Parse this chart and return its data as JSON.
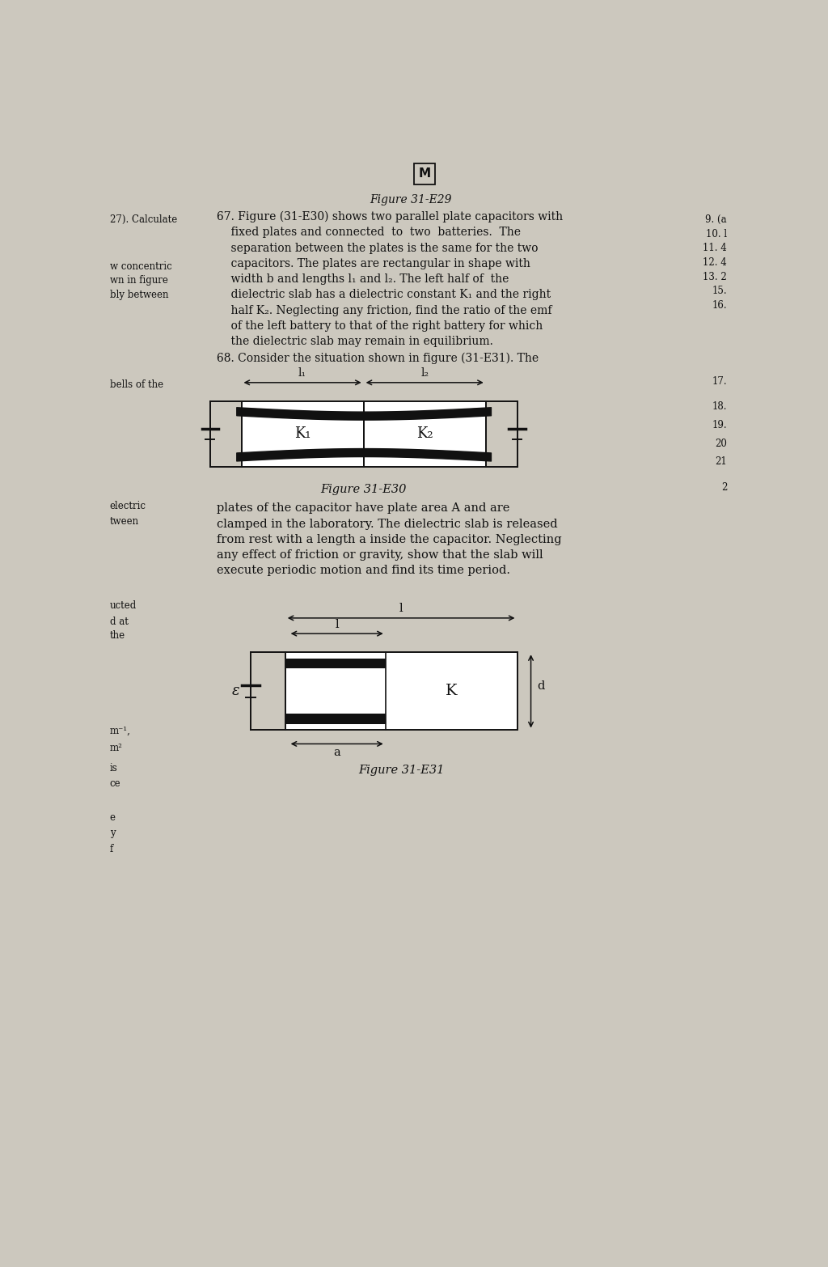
{
  "bg_color": "#ccc8be",
  "title_e29": "Figure 31-E29",
  "title_e30": "Figure 31-E30",
  "title_e31": "Figure 31-E31",
  "page_box_text": "M",
  "font_color": "#111111",
  "q67_lines": [
    "67. Figure (31-E30) shows two parallel plate capacitors with",
    "    fixed plates and connected  to  two  batteries.  The",
    "    separation between the plates is the same for the two",
    "    capacitors. The plates are rectangular in shape with",
    "    width b and lengths l₁ and l₂. The left half of  the",
    "    dielectric slab has a dielectric constant K₁ and the right",
    "    half K₂. Neglecting any friction, find the ratio of the emf",
    "    of the left battery to that of the right battery for which",
    "    the dielectric slab may remain in equilibrium."
  ],
  "q68_intro": "68. Consider the situation shown in figure (31-E31). The",
  "q68_body": [
    "plates of the capacitor have plate area A and are",
    "clamped in the laboratory. The dielectric slab is released",
    "from rest with a length a inside the capacitor. Neglecting",
    "any effect of friction or gravity, show that the slab will",
    "execute periodic motion and find its time period."
  ],
  "left_margin": [
    [
      10,
      100,
      "27). Calculate"
    ],
    [
      10,
      175,
      "w concentric"
    ],
    [
      10,
      198,
      "wn in figure"
    ],
    [
      10,
      221,
      "bly between"
    ],
    [
      10,
      365,
      "bells of the"
    ],
    [
      10,
      560,
      "electric"
    ],
    [
      10,
      585,
      "tween"
    ],
    [
      10,
      720,
      "ucted"
    ],
    [
      10,
      745,
      "d at"
    ],
    [
      10,
      768,
      "the"
    ],
    [
      10,
      920,
      "m⁻¹,"
    ],
    [
      10,
      948,
      "m²"
    ],
    [
      10,
      980,
      "is"
    ],
    [
      10,
      1005,
      "ce"
    ],
    [
      10,
      1060,
      "e"
    ],
    [
      10,
      1085,
      "y"
    ],
    [
      10,
      1110,
      "f"
    ]
  ],
  "right_margin": [
    [
      995,
      100,
      "9. (a"
    ],
    [
      995,
      123,
      "10. l"
    ],
    [
      995,
      146,
      "11. 4"
    ],
    [
      995,
      169,
      "12. 4"
    ],
    [
      995,
      192,
      "13. 2"
    ],
    [
      995,
      215,
      "15."
    ],
    [
      995,
      238,
      "16."
    ],
    [
      995,
      360,
      "17."
    ],
    [
      995,
      400,
      "18."
    ],
    [
      995,
      430,
      "19."
    ],
    [
      995,
      460,
      "20"
    ],
    [
      995,
      488,
      "21"
    ],
    [
      995,
      530,
      "2"
    ]
  ]
}
